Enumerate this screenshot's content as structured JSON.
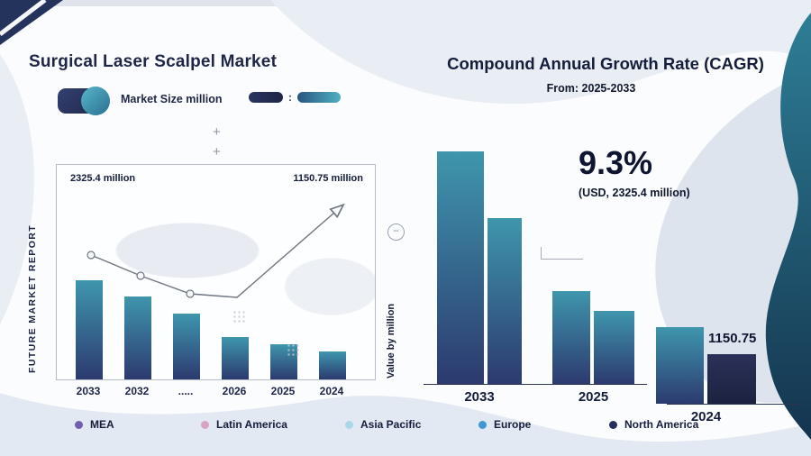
{
  "header": {
    "title": "Surgical Laser Scalpel Market",
    "market_size_label": "Market Size million",
    "pill_separator": ":"
  },
  "left_chart": {
    "side_label": "FUTURE MARKET REPORT",
    "annotation_start": "2325.4 million",
    "annotation_end": "1150.75 million"
  },
  "right_panel": {
    "title": "Compound Annual Growth Rate (CAGR)",
    "subtitle": "From: 2025-2033",
    "cagr_value": "9.3%",
    "cagr_note": "(USD, 2325.4 million)",
    "axis_label": "Value by million",
    "annotation": "1150.75"
  },
  "legend": {
    "items": [
      {
        "label": "MEA",
        "color": "#6f5fae"
      },
      {
        "label": "Latin America",
        "color": "#d9a3c6"
      },
      {
        "label": "Asia Pacific",
        "color": "#a9d7e8"
      },
      {
        "label": "Europe",
        "color": "#3f98d4"
      },
      {
        "label": "North America",
        "color": "#252f5a"
      }
    ]
  },
  "chart_data": [
    {
      "type": "bar",
      "title": "Surgical Laser Scalpel Market — Market Size (million USD)",
      "categories": [
        "2033",
        "2032",
        ".....",
        "2026",
        "2025",
        "2024"
      ],
      "values": [
        2325.4,
        2060,
        1780,
        1400,
        1280,
        1150.75
      ],
      "labeled_points": {
        "2033": 2325.4,
        "2024": 1150.75
      },
      "overlay": "declining marker line with upward trend arrow",
      "xlabel": "",
      "ylabel": ""
    },
    {
      "type": "bar",
      "title": "Compound Annual Growth Rate (CAGR)",
      "categories": [
        "2033",
        "2025",
        "2024"
      ],
      "series": [
        {
          "name": "series-1",
          "values": [
            2325.4,
            930,
            770
          ]
        },
        {
          "name": "series-2",
          "values": [
            1660,
            730,
            500
          ]
        }
      ],
      "annotation": "1150.75",
      "xlabel": "",
      "ylabel": "Value by million"
    }
  ],
  "colors": {
    "bar_gradient_top": "#3f96ad",
    "bar_gradient_bottom": "#2c3a6f",
    "dark_bar_top": "#2b3158",
    "dark_bar_bottom": "#1b2240",
    "navy_text": "#1e2646",
    "teal_accent": "#2e7e96"
  }
}
